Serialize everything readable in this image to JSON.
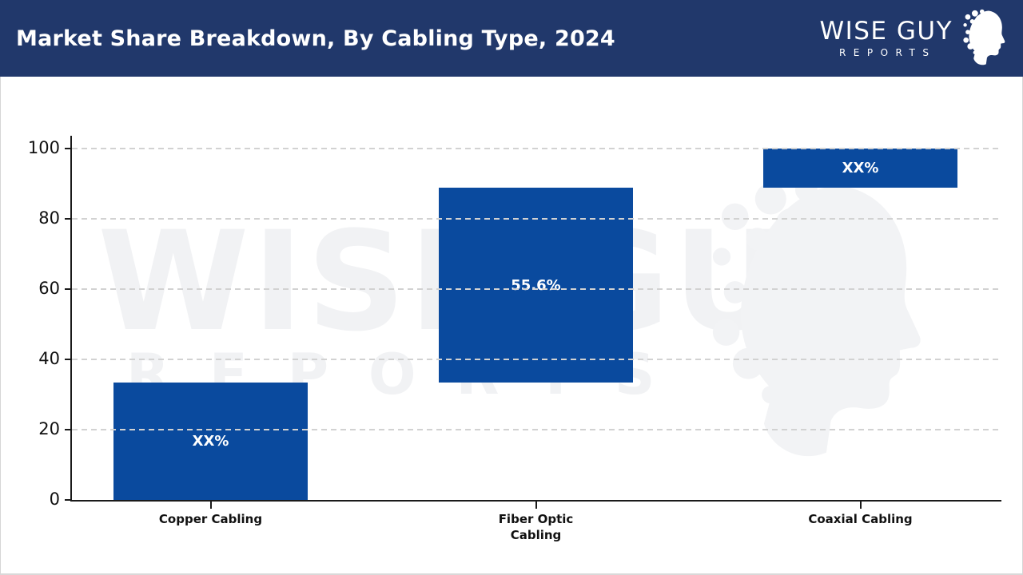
{
  "colors": {
    "header_bg": "#21386b",
    "bar": "#0a4a9e",
    "bar_label": "#ffffff",
    "grid": "#d2d2d2",
    "axis": "#1a1a1a",
    "watermark": "#f1f2f4"
  },
  "header": {
    "title": "Market Share Breakdown, By Cabling Type, 2024",
    "brand": {
      "line1": "WISE GUY",
      "line2": "REPORTS"
    }
  },
  "watermark": {
    "line1": "WISE GUY",
    "line2": "REPORTS"
  },
  "chart_data": {
    "type": "bar",
    "subtype": "floating-stacked-percentage",
    "title": "Market Share Breakdown, By Cabling Type, 2024",
    "categories": [
      "Copper Cabling",
      "Fiber Optic\nCabling",
      "Coaxial Cabling"
    ],
    "bars": [
      {
        "category": "Copper Cabling",
        "base": 0,
        "value": 33.3,
        "label": "XX%"
      },
      {
        "category": "Fiber Optic Cabling",
        "base": 33.3,
        "value": 55.6,
        "label": "55.6%"
      },
      {
        "category": "Coaxial Cabling",
        "base": 88.9,
        "value": 11.1,
        "label": "XX%"
      }
    ],
    "xlabel": "",
    "ylabel": "",
    "ylim": [
      0,
      100
    ],
    "yticks": [
      0,
      20,
      40,
      60,
      80,
      100
    ],
    "grid": "horizontal-dashed",
    "legend": "none"
  }
}
